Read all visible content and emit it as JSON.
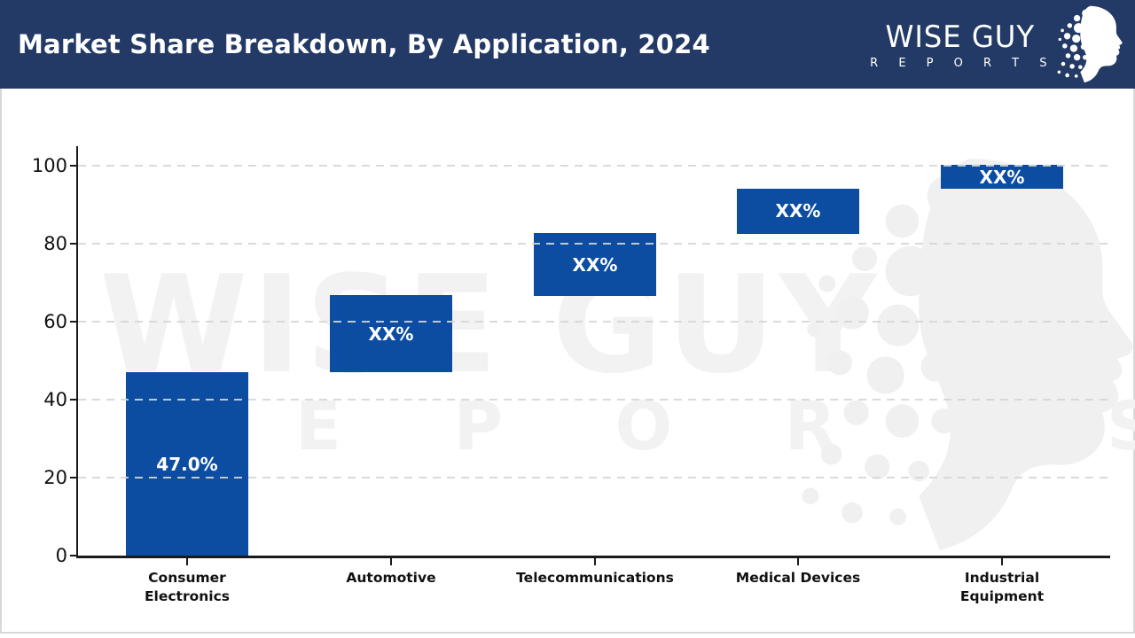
{
  "header": {
    "title": "Market Share Breakdown, By Application, 2024",
    "logo": {
      "line1": "WISE GUY",
      "line2": "R E P O R T S"
    }
  },
  "watermark": {
    "line1": "WISE GUY",
    "line2": "R E P O R T S"
  },
  "colors": {
    "header_bg": "#233a66",
    "bar": "#0c4da2",
    "grid": "#d9d9d9",
    "axis": "#1a1a1a",
    "value_label": "#ffffff",
    "watermark": "#f2f2f2"
  },
  "chart_data": {
    "type": "bar",
    "subtype": "waterfall",
    "title": "Market Share Breakdown, By Application, 2024",
    "categories": [
      "Consumer Electronics",
      "Automotive",
      "Telecommunications",
      "Medical Devices",
      "Industrial Equipment"
    ],
    "bars": [
      {
        "category": "Consumer Electronics",
        "label_lines": [
          "Consumer",
          "Electronics"
        ],
        "start": 0,
        "end": 47.0,
        "value_label": "47.0%"
      },
      {
        "category": "Automotive",
        "label_lines": [
          "Automotive"
        ],
        "start": 47.0,
        "end": 66.8,
        "value_label": "XX%"
      },
      {
        "category": "Telecommunications",
        "label_lines": [
          "Telecommunications"
        ],
        "start": 66.6,
        "end": 82.7,
        "value_label": "XX%"
      },
      {
        "category": "Medical Devices",
        "label_lines": [
          "Medical Devices"
        ],
        "start": 82.5,
        "end": 94.1,
        "value_label": "XX%"
      },
      {
        "category": "Industrial Equipment",
        "label_lines": [
          "Industrial",
          "Equipment"
        ],
        "start": 94.0,
        "end": 100.2,
        "value_label": "XX%"
      }
    ],
    "yticks": [
      0,
      20,
      40,
      60,
      80,
      100
    ],
    "ylim": [
      0,
      105
    ],
    "grid": "horizontal-dashed",
    "legend": "none"
  }
}
